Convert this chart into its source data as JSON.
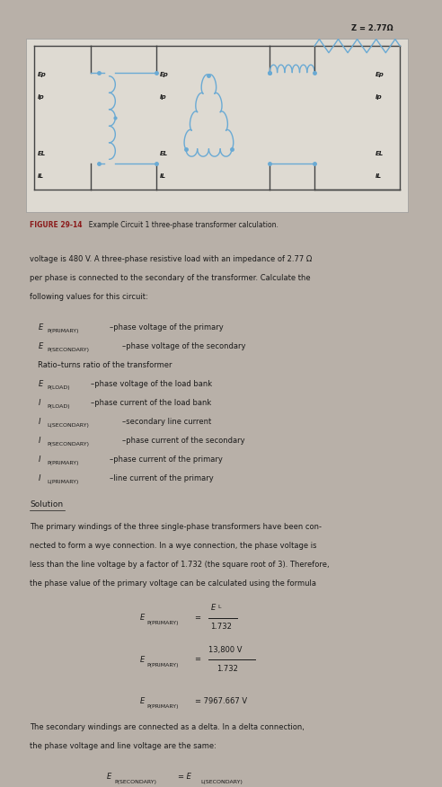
{
  "bg_outer": "#b8b0a8",
  "bg_page": "#c8c5be",
  "circuit_bg": "#dedad2",
  "line_color": "#6aaad4",
  "dark_line": "#444444",
  "text_color": "#1a1a1a",
  "caption_bold_color": "#8b1a1a",
  "fig_caption_bold": "FIGURE 29-14",
  "fig_caption_rest": "  Example Circuit 1 three-phase transformer calculation.",
  "intro_text_lines": [
    "voltage is 480 V. A three-phase resistive load with an impedance of 2.77 Ω",
    "per phase is connected to the secondary of the transformer. Calculate the",
    "following values for this circuit:"
  ],
  "bullet_items": [
    {
      "prefix": "E",
      "sub": "P(PRIMARY)",
      "suffix": "–phase voltage of the primary"
    },
    {
      "prefix": "E",
      "sub": "P(SECONDARY)",
      "suffix": "–phase voltage of the secondary"
    },
    {
      "prefix": "Ratio–turns ratio of the transformer",
      "sub": "",
      "suffix": ""
    },
    {
      "prefix": "E",
      "sub": "P(LOAD)",
      "suffix": "–phase voltage of the load bank"
    },
    {
      "prefix": "I",
      "sub": "P(LOAD)",
      "suffix": "–phase current of the load bank"
    },
    {
      "prefix": "I",
      "sub": "L(SECONDARY)",
      "suffix": "–secondary line current"
    },
    {
      "prefix": "I",
      "sub": "P(SECONDARY)",
      "suffix": "–phase current of the secondary"
    },
    {
      "prefix": "I",
      "sub": "P(PRIMARY)",
      "suffix": "–phase current of the primary"
    },
    {
      "prefix": "I",
      "sub": "L(PRIMARY)",
      "suffix": "–line current of the primary"
    }
  ],
  "solution_label": "Solution",
  "solution_text_lines": [
    "The primary windings of the three single-phase transformers have been con-",
    "nected to form a wye connection. In a wye connection, the phase voltage is",
    "less than the line voltage by a factor of 1.732 (the square root of 3). Therefore,",
    "the phase value of the primary voltage can be calculated using the formula"
  ],
  "secondary_text_lines": [
    "The secondary windings are connected as a delta. In a delta connection,",
    "the phase voltage and line voltage are the same:"
  ],
  "z_label": "Z = 2.77Ω"
}
